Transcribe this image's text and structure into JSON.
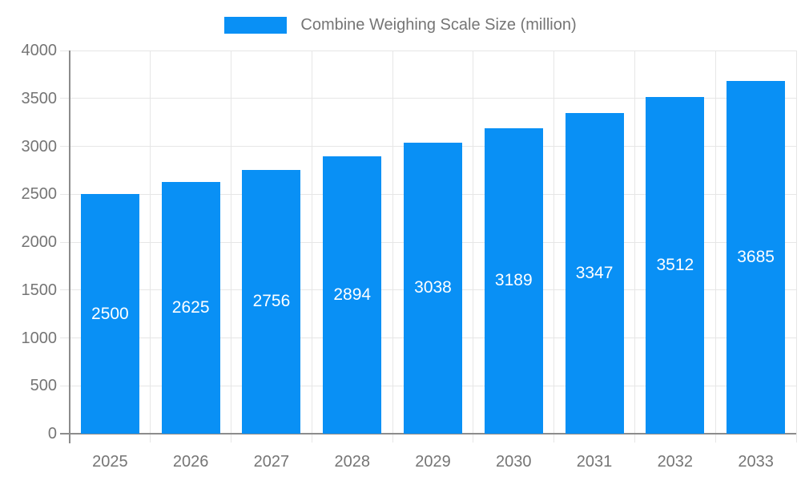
{
  "chart_data": {
    "type": "bar",
    "title": "Combine Weighing Scale Size (million)",
    "categories": [
      "2025",
      "2026",
      "2027",
      "2028",
      "2029",
      "2030",
      "2031",
      "2032",
      "2033"
    ],
    "values": [
      2500,
      2625,
      2756,
      2894,
      3038,
      3189,
      3347,
      3512,
      3685
    ],
    "series": [
      {
        "name": "Combine Weighing Scale Size (million)",
        "values": [
          2500,
          2625,
          2756,
          2894,
          3038,
          3189,
          3347,
          3512,
          3685
        ]
      }
    ],
    "xlabel": "",
    "ylabel": "",
    "ylim": [
      0,
      4000
    ],
    "yticks": [
      0,
      500,
      1000,
      1500,
      2000,
      2500,
      3000,
      3500,
      4000
    ],
    "grid": true,
    "bar_value_labels": true,
    "legend_position": "top-center",
    "colors": {
      "bar": "#0990f5",
      "bar_label_text": "#ffffff",
      "grid_line": "#e6e6e6",
      "axis_line": "#8c8c8c",
      "tick_label_text": "#757575",
      "legend_text": "#757575",
      "background": "#ffffff"
    }
  }
}
